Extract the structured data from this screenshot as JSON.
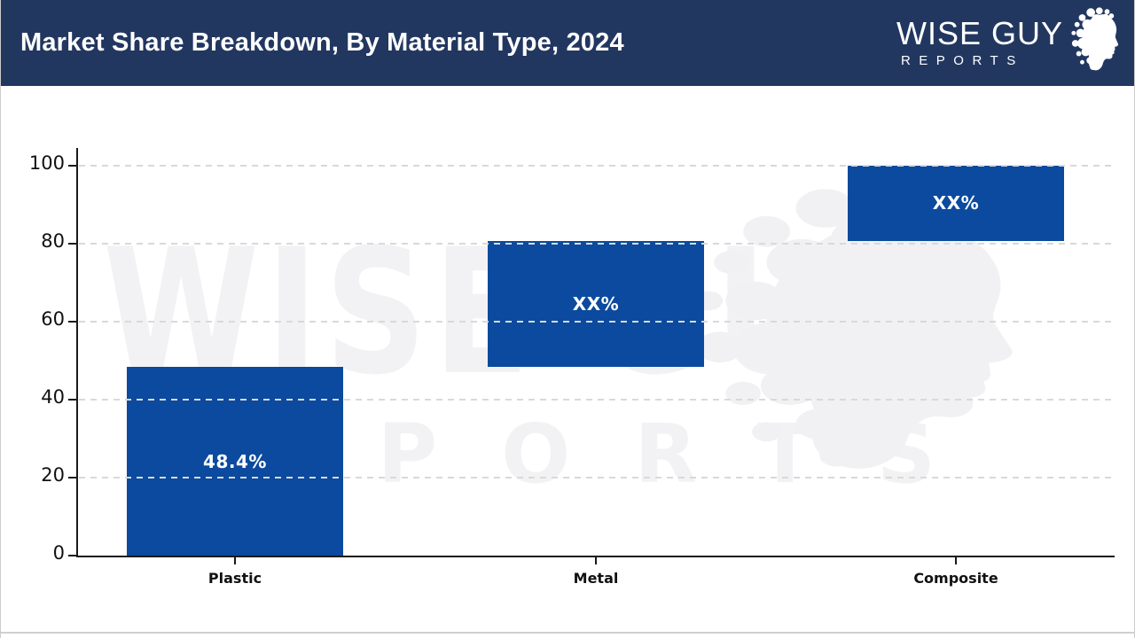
{
  "header": {
    "title": "Market Share Breakdown, By Material Type, 2024",
    "logo": {
      "line1": "WISE GUY",
      "line2": "REPORTS"
    },
    "colors": {
      "background": "#223760",
      "text": "#ffffff"
    }
  },
  "watermark": {
    "line1": "WISE GUY",
    "line2": "REPORTS"
  },
  "chart_data": {
    "type": "bar",
    "subtype": "floating-waterfall-bars",
    "title": "Market Share Breakdown, By Material Type, 2024",
    "categories": [
      "Plastic",
      "Metal",
      "Composite"
    ],
    "bars": [
      {
        "category": "Plastic",
        "start": 0,
        "end": 48.4,
        "label": "48.4%"
      },
      {
        "category": "Metal",
        "start": 48.4,
        "end": 80.7,
        "label": "XX%"
      },
      {
        "category": "Composite",
        "start": 80.7,
        "end": 100,
        "label": "XX%"
      }
    ],
    "yticks": [
      0,
      20,
      40,
      60,
      80,
      100
    ],
    "ylim": [
      0,
      104.5
    ],
    "xlabel": "",
    "ylabel": "",
    "grid": "horizontal-dashed-above-bars",
    "legend": "none",
    "bar_color": "#0b4a9e",
    "bar_label_color": "#ffffff",
    "axis_color": "#1a1a1a",
    "grid_color": "#d9d9d9"
  }
}
